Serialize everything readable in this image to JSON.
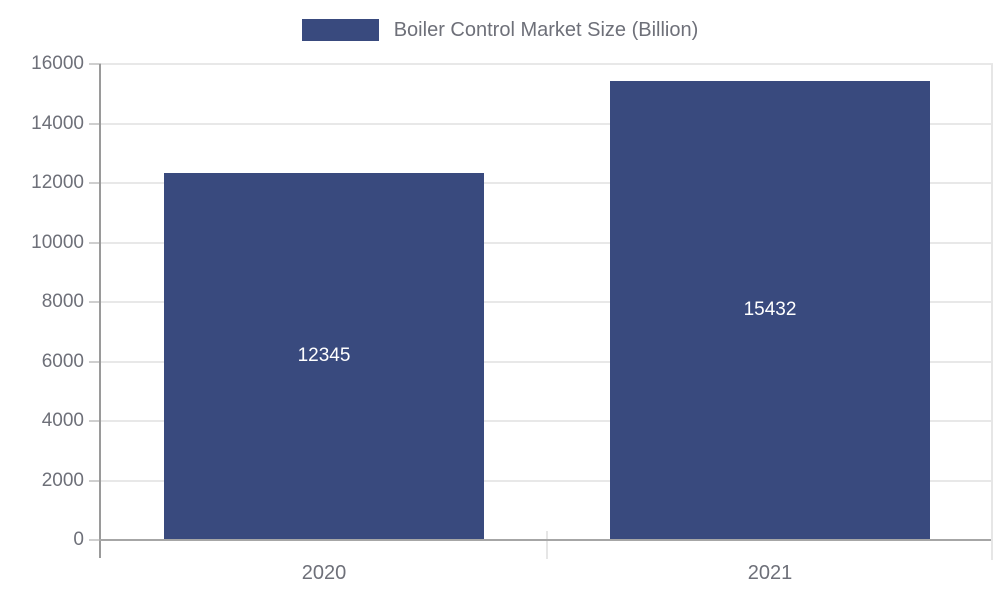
{
  "chart_data": {
    "type": "bar",
    "title": "",
    "categories": [
      "2020",
      "2021"
    ],
    "series": [
      {
        "name": "Boiler Control Market Size (Billion)",
        "values": [
          12345,
          15432
        ],
        "color": "#394A7E",
        "label_color": "#FFFFFF"
      }
    ],
    "xlabel": "",
    "ylabel": "",
    "ylim": [
      0,
      16000
    ],
    "ytick_interval": 2000,
    "yticks": [
      0,
      2000,
      4000,
      6000,
      8000,
      10000,
      12000,
      14000,
      16000
    ],
    "grid": true,
    "legend_position": "top-center",
    "bar_labels_inside": true
  },
  "colors": {
    "bar": "#394A7E",
    "bar_label": "#FFFFFF",
    "axis_text": "#6E7079",
    "legend_text": "#6E7079",
    "grid_line": "#E8E8E8",
    "x_axis_line": "#A6A6A6",
    "y_axis_line": "#9A9A9A",
    "tick_line": "#CFCFCF",
    "border_line": "#E6E6E6",
    "background": "#FFFFFF"
  }
}
